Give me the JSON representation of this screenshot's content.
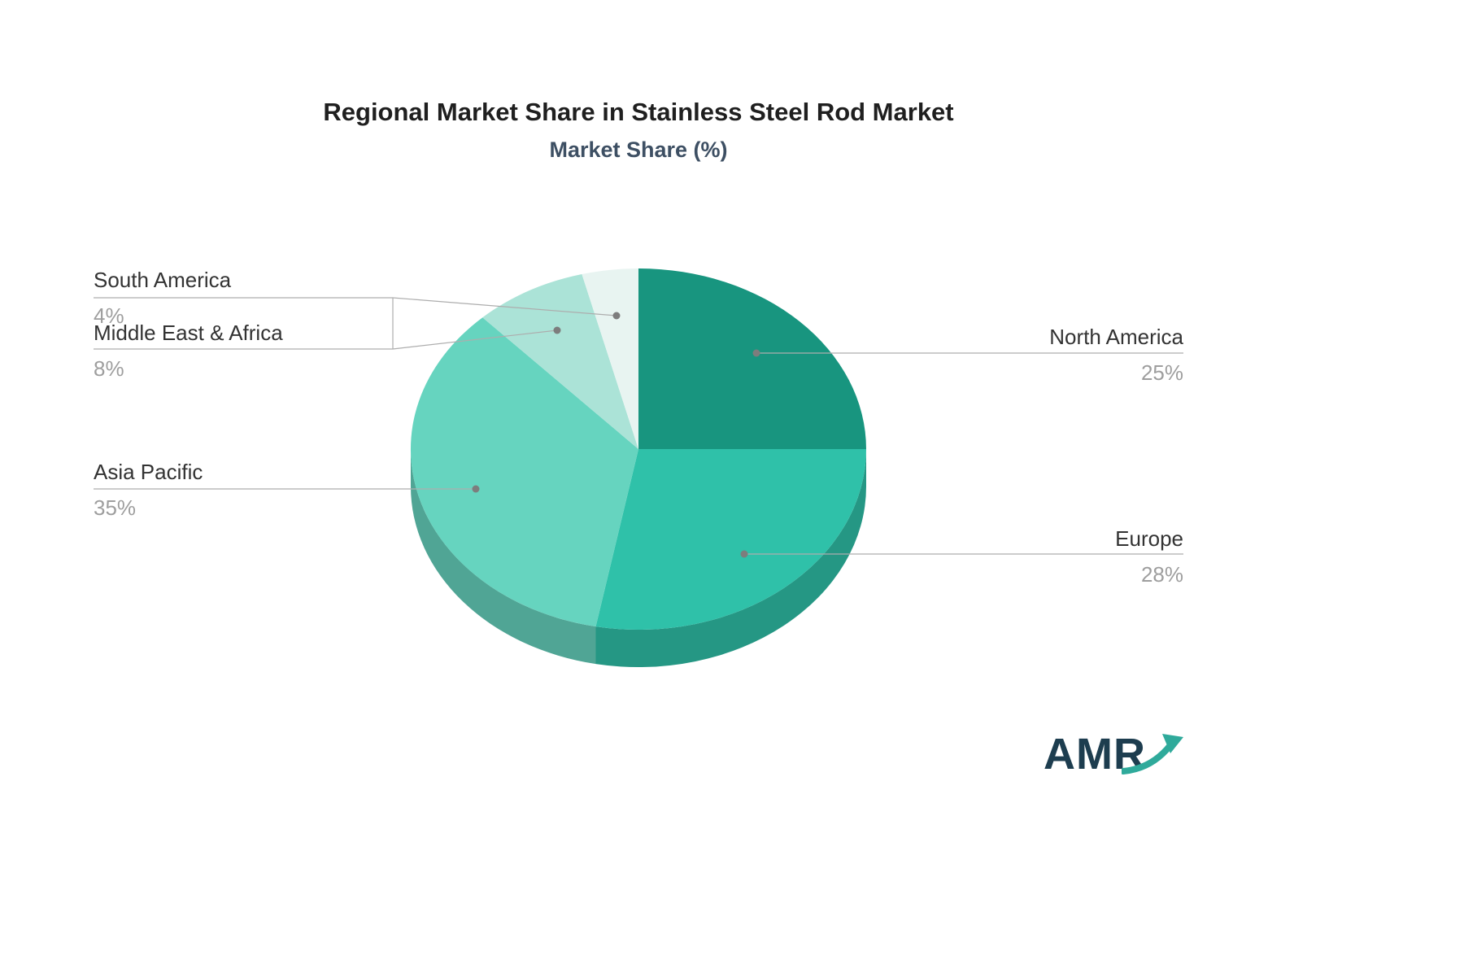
{
  "chart_data": {
    "type": "pie",
    "title": "Regional Market Share in Stainless Steel Rod Market",
    "subtitle": "Market Share (%)",
    "unit": "%",
    "categories": [
      "North America",
      "Europe",
      "Asia Pacific",
      "Middle East & Africa",
      "South America"
    ],
    "values": [
      25,
      28,
      35,
      8,
      4
    ],
    "value_labels": [
      "25%",
      "28%",
      "35%",
      "8%",
      "4%"
    ],
    "colors": [
      "#18957F",
      "#2FC1A9",
      "#66D4BF",
      "#ABE3D7",
      "#E8F4F1"
    ],
    "effect": "3d",
    "start_angle": "top",
    "direction": "clockwise",
    "legend_position": "none",
    "label_style": "callout-leader-lines"
  },
  "logo": {
    "text": "AMR",
    "text_color": "#1d3d4f",
    "arrow_color": "#2FAA9B"
  }
}
